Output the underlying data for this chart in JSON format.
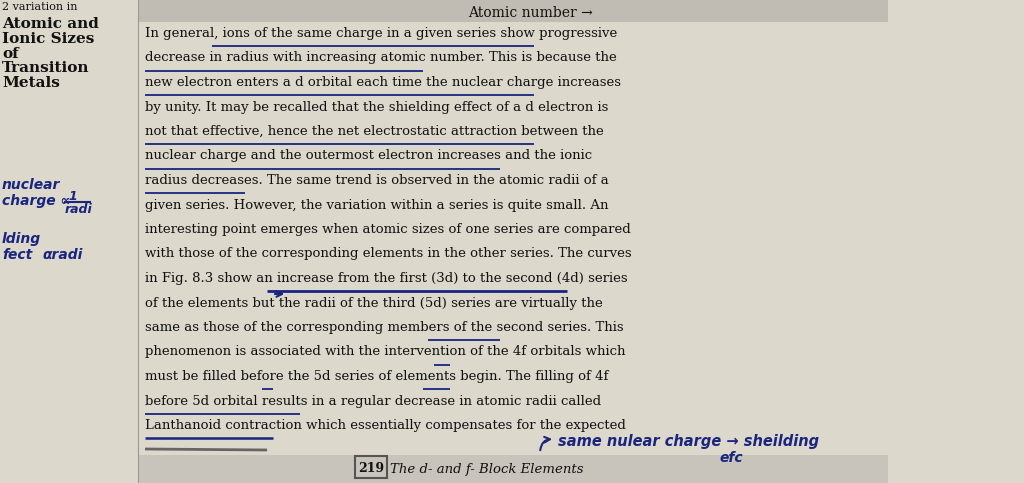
{
  "bg_color": "#d0c8b8",
  "left_bg": "#e8e4dc",
  "right_bg": "#e8e4dc",
  "title": "Atomic number →",
  "left_lines": [
    [
      "2 variation in",
      false,
      8
    ],
    [
      "Atomic and",
      true,
      11
    ],
    [
      "Ionic Sizes",
      true,
      11
    ],
    [
      "of",
      true,
      11
    ],
    [
      "Transition",
      true,
      11
    ],
    [
      "Metals",
      true,
      11
    ]
  ],
  "hand_nuclear": "nuclear",
  "hand_charge": "charge ∝",
  "hand_frac_num": "1",
  "hand_frac_den": "radi",
  "hand_lding": "lding",
  "hand_fect": "fect",
  "hand_gradi": "αradi",
  "main_text": [
    "In general, ions of the same charge in a given series show progressive",
    "decrease in radius with increasing atomic number. This is because the",
    "new electron enters a d orbital each time the nuclear charge increases",
    "by unity. It may be recalled that the shielding effect of a d electron is",
    "not that effective, hence the net electrostatic attraction between the",
    "nuclear charge and the outermost electron increases and the ionic",
    "radius decreases. The same trend is observed in the atomic radii of a",
    "given series. However, the variation within a series is quite small. An",
    "interesting point emerges when atomic sizes of one series are compared",
    "with those of the corresponding elements in the other series. The curves",
    "in Fig. 8.3 show an increase from the first (3d) to the second (4d) series",
    "of the elements but the radii of the third (5d) series are virtually the",
    "same as those of the corresponding members of the second series. This",
    "phenomenon is associated with the intervention of the 4f orbitals which",
    "must be filled before the 5d series of elements begin. The filling of 4f",
    "before 5d orbital results in a regular decrease in atomic radii called",
    "Lanthanoid contraction which essentially compensates for the expected"
  ],
  "hand_bottom": "same nulear charge → sheilding",
  "hand_bottom2": "efc",
  "bottom_text": "219",
  "bottom_text2": "The d- and f- Block Elements",
  "text_color": "#111111",
  "hand_color": "#1a2580",
  "underline_color": "#1a2580",
  "separator_color": "#999999"
}
